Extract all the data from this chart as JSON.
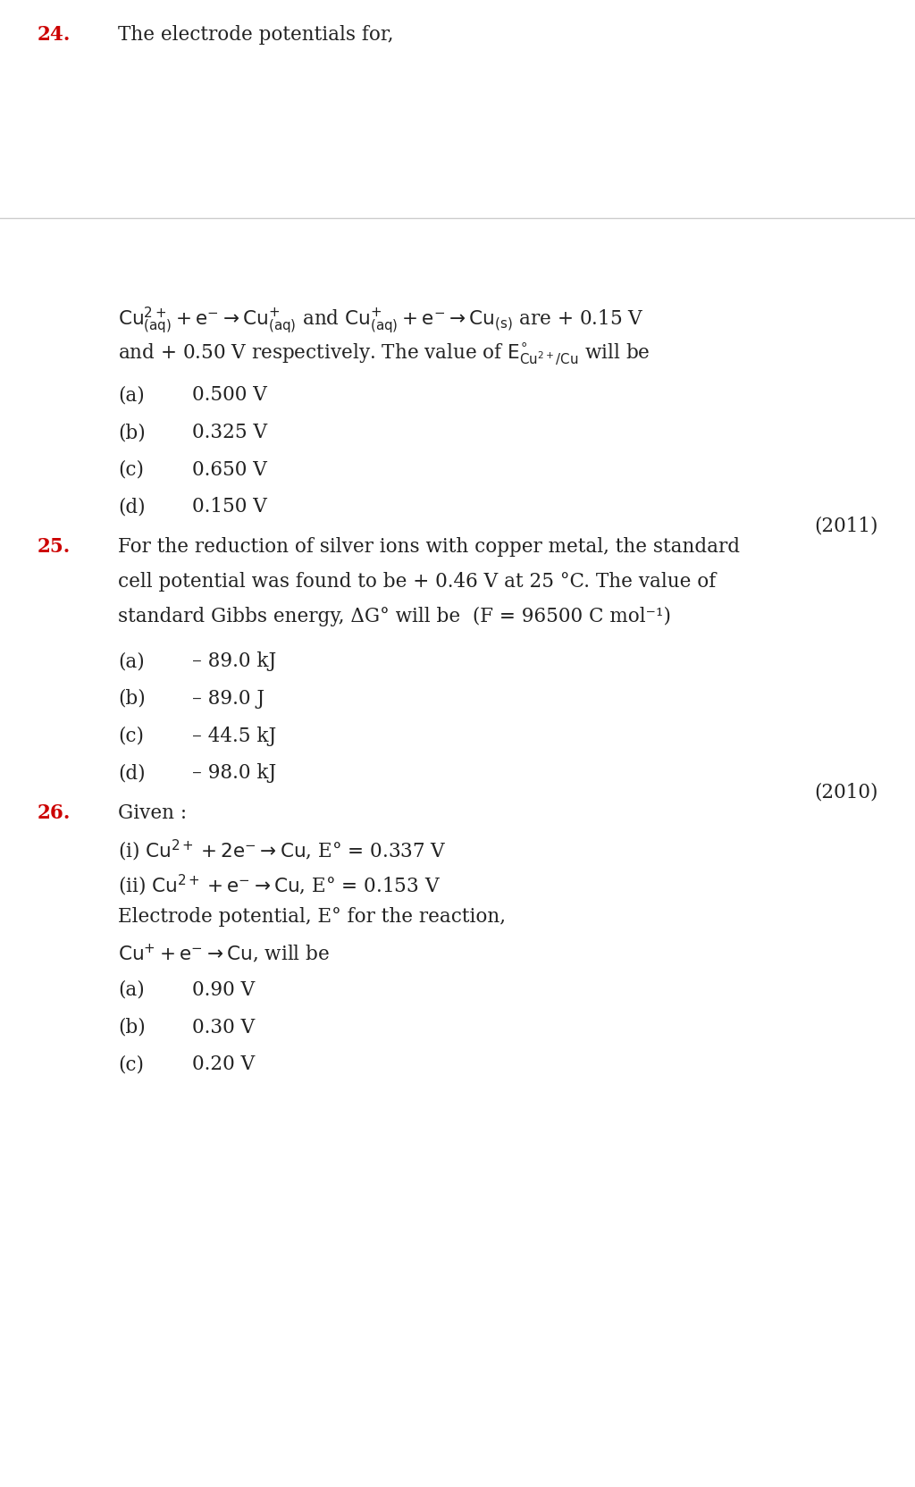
{
  "bg_color": "#ffffff",
  "text_color": "#222222",
  "red_color": "#cc0000",
  "fig_width": 10.24,
  "fig_height": 16.65,
  "dpi": 100,
  "q24_number": "24.",
  "q24_intro": "The electrode potentials for,",
  "q24_line1": "$\\mathrm{Cu^{2+}_{(aq)} + e^{-} \\rightarrow Cu^{+}_{(aq)}}$ and $\\mathrm{Cu^{+}_{(aq)} + e^{-} \\rightarrow Cu_{(s)}}$ are + 0.15 V",
  "q24_line2": "and + 0.50 V respectively. The value of $\\mathrm{E^{\\circ}_{Cu^{2+}/Cu}}$ will be",
  "q24_options": [
    "(a)     0.500 V",
    "(b)     0.325 V",
    "(c)     0.650 V",
    "(d)     0.150 V"
  ],
  "q24_year": "(2011)",
  "q25_number": "25.",
  "q25_line1": "For the reduction of silver ions with copper metal, the standard",
  "q25_line2": "cell potential was found to be + 0.46 V at 25 °C. The value of",
  "q25_line3": "standard Gibbs energy, ΔG° will be  (F = 96500 C mol⁻¹)",
  "q25_options": [
    "(a)     – 89.0 kJ",
    "(b)     – 89.0 J",
    "(c)     – 44.5 kJ",
    "(d)     – 98.0 kJ"
  ],
  "q25_year": "(2010)",
  "q26_number": "26.",
  "q26_intro": "Given :",
  "q26_lines": [
    "(i) $\\mathrm{Cu^{2+} + 2e^{-} \\rightarrow Cu}$, E° = 0.337 V",
    "(ii) $\\mathrm{Cu^{2+} + e^{-} \\rightarrow Cu}$, E° = 0.153 V",
    "Electrode potential, E° for the reaction,",
    "$\\mathrm{Cu^{+} + e^{-} \\rightarrow Cu}$, will be"
  ],
  "q26_options": [
    "(a)     0.90 V",
    "(b)     0.30 V",
    "(c)     0.20 V"
  ]
}
